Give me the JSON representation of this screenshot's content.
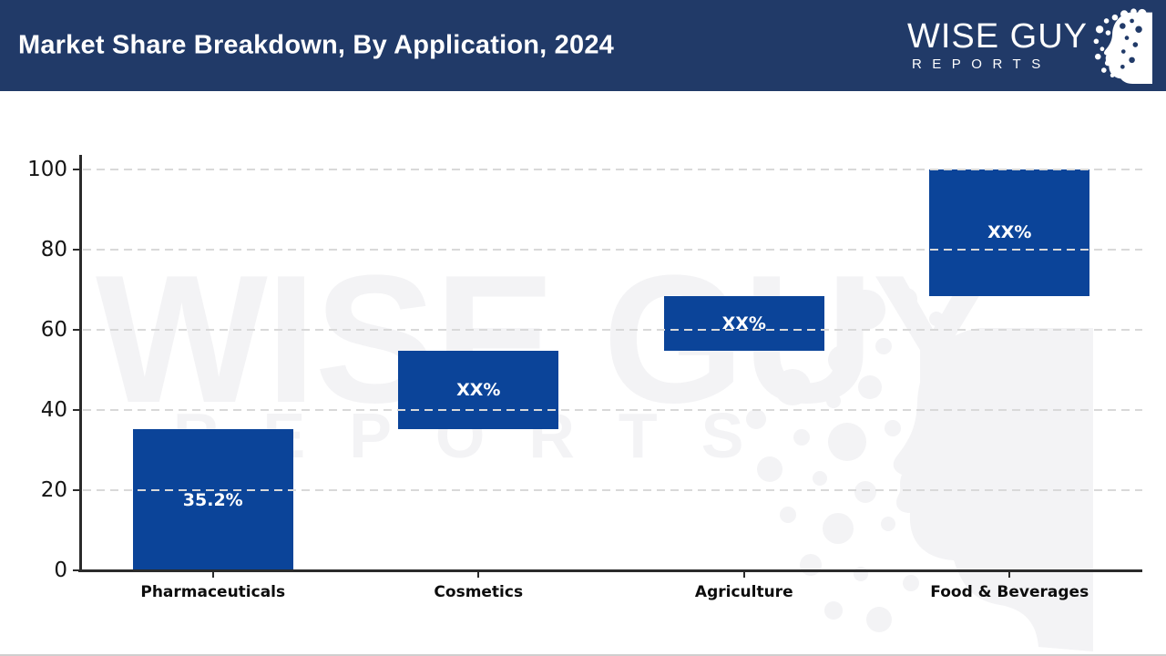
{
  "header": {
    "title": "Market Share Breakdown, By Application, 2024"
  },
  "logo": {
    "line1": "WISE GUY",
    "line2": "REPORTS"
  },
  "watermark": {
    "line1": "WISE GUY",
    "line2": "REPORTS"
  },
  "colors": {
    "header_bg": "#213a68",
    "bar": "#0b4499",
    "grid": "#d9d9d9",
    "axis": "#2b2b2b",
    "bar_label": "#ffffff",
    "watermark": "#f3f3f5"
  },
  "chart_data": {
    "type": "bar",
    "subtype": "waterfall",
    "title": "Market Share Breakdown, By Application, 2024",
    "categories": [
      "Pharmaceuticals",
      "Cosmetics",
      "Agriculture",
      "Food & Beverages"
    ],
    "segments": [
      {
        "category": "Pharmaceuticals",
        "start": 0,
        "end": 35.2,
        "label": "35.2%"
      },
      {
        "category": "Cosmetics",
        "start": 35.2,
        "end": 54.7,
        "label": "XX%"
      },
      {
        "category": "Agriculture",
        "start": 54.7,
        "end": 68.5,
        "label": "XX%"
      },
      {
        "category": "Food & Beverages",
        "start": 68.5,
        "end": 100,
        "label": "XX%"
      }
    ],
    "yticks": [
      0,
      20,
      40,
      60,
      80,
      100
    ],
    "ylim": [
      0,
      103.6
    ],
    "xlabel": "",
    "ylabel": "",
    "grid": "horizontal-dashed",
    "gridlines_above_bars": true,
    "legend": "none"
  }
}
